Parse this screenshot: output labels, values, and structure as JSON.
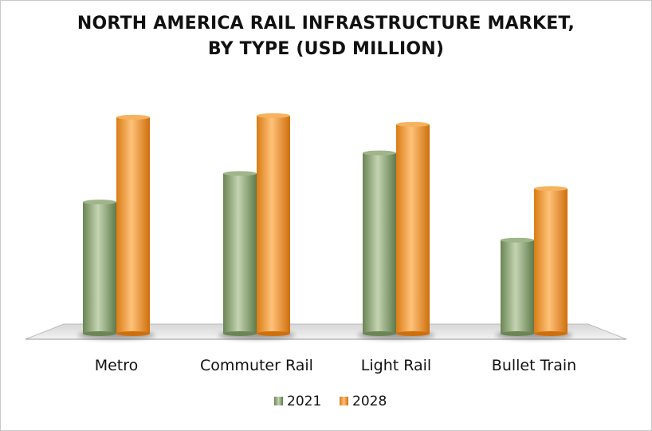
{
  "chart_data": {
    "type": "bar",
    "title_lines": [
      "NORTH AMERICA RAIL INFRASTRUCTURE MARKET,",
      "BY TYPE (USD MILLION)"
    ],
    "categories": [
      "Metro",
      "Commuter Rail",
      "Light Rail",
      "Bullet Train"
    ],
    "series": [
      {
        "name": "2021",
        "values": [
          166,
          202,
          228,
          118
        ],
        "color": "#8fa876"
      },
      {
        "name": "2028",
        "values": [
          273,
          275,
          264,
          183
        ],
        "color": "#f0a040"
      }
    ],
    "ylim": [
      0,
      290
    ],
    "grid": false,
    "legend_position": "bottom-center"
  }
}
